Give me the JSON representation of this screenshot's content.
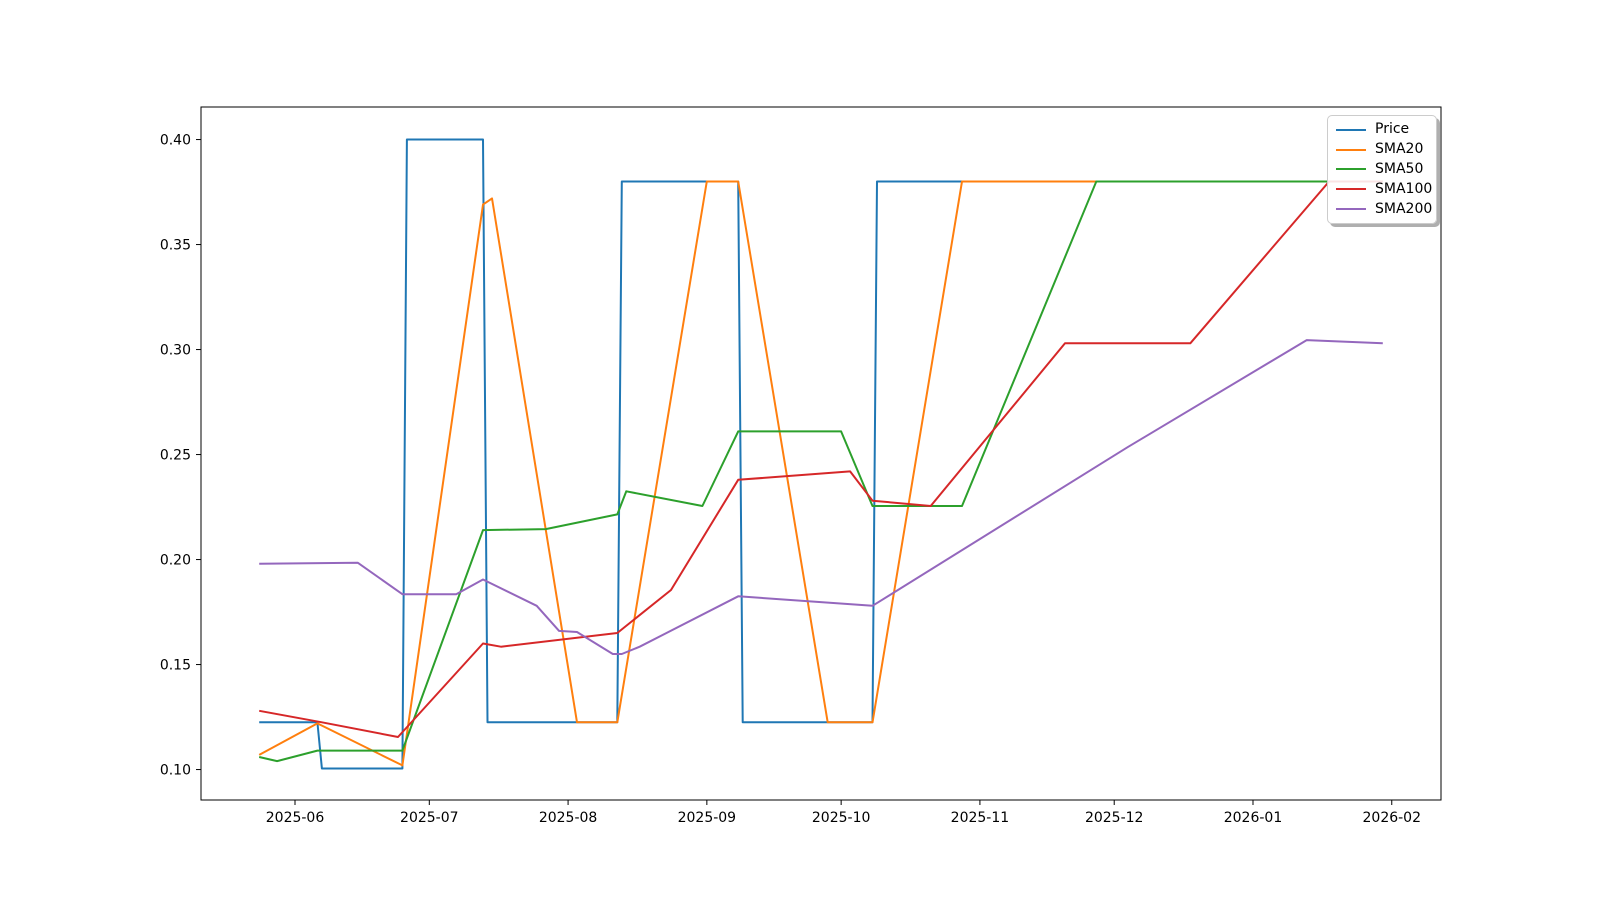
{
  "figure": {
    "background": "#ffffff",
    "plot_background": "#ffffff",
    "spine_color": "#000000",
    "tick_label_color": "#000000"
  },
  "chart_data": {
    "type": "line",
    "title": "",
    "xlabel": "",
    "ylabel": "",
    "grid": false,
    "x_axis": {
      "kind": "date",
      "range": [
        "2025-05-11",
        "2026-02-12"
      ],
      "ticks": [
        "2025-06-01",
        "2025-07-01",
        "2025-08-01",
        "2025-09-01",
        "2025-10-01",
        "2025-11-01",
        "2025-12-01",
        "2026-01-01",
        "2026-02-01"
      ],
      "tick_labels": [
        "2025-06",
        "2025-07",
        "2025-08",
        "2025-09",
        "2025-10",
        "2025-11",
        "2025-12",
        "2026-01",
        "2026-02"
      ]
    },
    "y_axis": {
      "range": [
        0.0855,
        0.4155
      ],
      "ticks": [
        0.1,
        0.15,
        0.2,
        0.25,
        0.3,
        0.35,
        0.4
      ],
      "tick_labels": [
        "0.10",
        "0.15",
        "0.20",
        "0.25",
        "0.30",
        "0.35",
        "0.40"
      ]
    },
    "legend": {
      "position": "upper right",
      "entries": [
        "Price",
        "SMA20",
        "SMA50",
        "SMA100",
        "SMA200"
      ]
    },
    "series": [
      {
        "name": "Price",
        "color": "#1f77b4",
        "points": [
          [
            "2025-05-24",
            0.1225
          ],
          [
            "2025-06-06",
            0.1225
          ],
          [
            "2025-06-07",
            0.1005
          ],
          [
            "2025-06-25",
            0.1005
          ],
          [
            "2025-06-26",
            0.4
          ],
          [
            "2025-07-13",
            0.4
          ],
          [
            "2025-07-14",
            0.1225
          ],
          [
            "2025-08-12",
            0.1225
          ],
          [
            "2025-08-13",
            0.38
          ],
          [
            "2025-09-08",
            0.38
          ],
          [
            "2025-09-09",
            0.1225
          ],
          [
            "2025-10-08",
            0.1225
          ],
          [
            "2025-10-09",
            0.38
          ],
          [
            "2026-01-30",
            0.38
          ]
        ]
      },
      {
        "name": "SMA20",
        "color": "#ff7f0e",
        "points": [
          [
            "2025-05-24",
            0.107
          ],
          [
            "2025-06-06",
            0.122
          ],
          [
            "2025-06-25",
            0.102
          ],
          [
            "2025-07-13",
            0.369
          ],
          [
            "2025-07-15",
            0.372
          ],
          [
            "2025-08-03",
            0.1225
          ],
          [
            "2025-08-12",
            0.1225
          ],
          [
            "2025-09-01",
            0.38
          ],
          [
            "2025-09-08",
            0.38
          ],
          [
            "2025-09-28",
            0.1225
          ],
          [
            "2025-10-08",
            0.1225
          ],
          [
            "2025-10-28",
            0.38
          ],
          [
            "2026-01-30",
            0.38
          ]
        ]
      },
      {
        "name": "SMA50",
        "color": "#2ca02c",
        "points": [
          [
            "2025-05-24",
            0.106
          ],
          [
            "2025-05-28",
            0.104
          ],
          [
            "2025-06-06",
            0.109
          ],
          [
            "2025-06-25",
            0.109
          ],
          [
            "2025-07-13",
            0.214
          ],
          [
            "2025-07-27",
            0.2145
          ],
          [
            "2025-08-12",
            0.2215
          ],
          [
            "2025-08-14",
            0.2325
          ],
          [
            "2025-08-31",
            0.2255
          ],
          [
            "2025-09-08",
            0.261
          ],
          [
            "2025-10-01",
            0.261
          ],
          [
            "2025-10-08",
            0.2255
          ],
          [
            "2025-10-28",
            0.2255
          ],
          [
            "2025-11-27",
            0.38
          ],
          [
            "2026-01-30",
            0.38
          ]
        ]
      },
      {
        "name": "SMA100",
        "color": "#d62728",
        "points": [
          [
            "2025-05-24",
            0.128
          ],
          [
            "2025-06-07",
            0.1225
          ],
          [
            "2025-06-24",
            0.1155
          ],
          [
            "2025-07-13",
            0.16
          ],
          [
            "2025-07-17",
            0.1585
          ],
          [
            "2025-08-12",
            0.165
          ],
          [
            "2025-08-24",
            0.1855
          ],
          [
            "2025-09-08",
            0.238
          ],
          [
            "2025-10-03",
            0.242
          ],
          [
            "2025-10-08",
            0.228
          ],
          [
            "2025-10-21",
            0.2255
          ],
          [
            "2025-11-20",
            0.303
          ],
          [
            "2025-12-18",
            0.303
          ],
          [
            "2026-01-18",
            0.38
          ],
          [
            "2026-01-30",
            0.38
          ]
        ]
      },
      {
        "name": "SMA200",
        "color": "#9467bd",
        "points": [
          [
            "2025-05-24",
            0.198
          ],
          [
            "2025-06-15",
            0.1985
          ],
          [
            "2025-06-25",
            0.1835
          ],
          [
            "2025-07-07",
            0.1835
          ],
          [
            "2025-07-13",
            0.1905
          ],
          [
            "2025-07-25",
            0.178
          ],
          [
            "2025-07-30",
            0.166
          ],
          [
            "2025-08-03",
            0.1655
          ],
          [
            "2025-08-11",
            0.155
          ],
          [
            "2025-08-13",
            0.155
          ],
          [
            "2025-08-17",
            0.1585
          ],
          [
            "2025-09-08",
            0.1825
          ],
          [
            "2025-10-08",
            0.178
          ],
          [
            "2025-12-04",
            0.2535
          ],
          [
            "2026-01-13",
            0.3045
          ],
          [
            "2026-01-30",
            0.303
          ]
        ]
      }
    ]
  }
}
